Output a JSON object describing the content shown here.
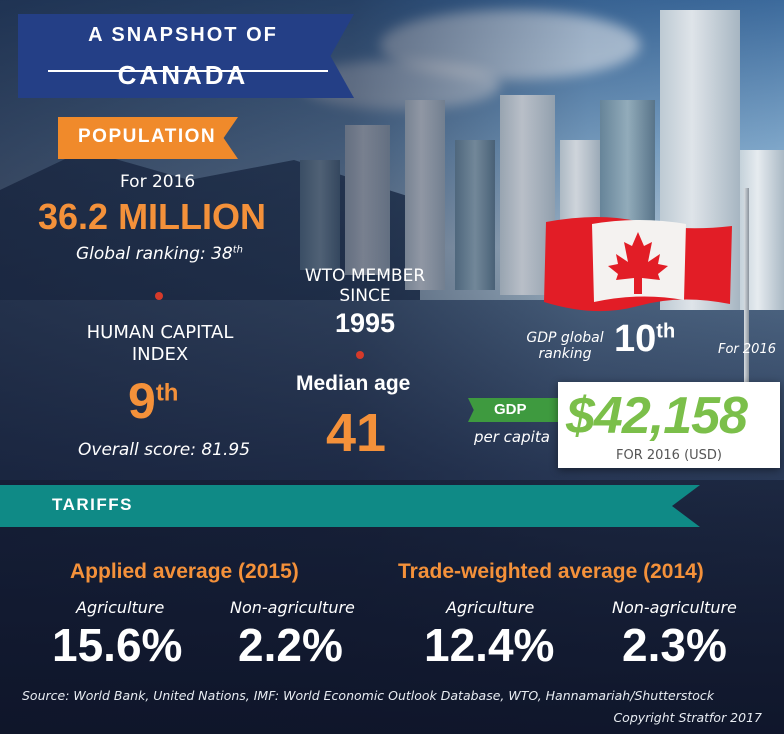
{
  "title": {
    "line1": "A SNAPSHOT OF",
    "line2": "CANADA"
  },
  "population": {
    "label": "POPULATION",
    "year_label": "For 2016",
    "value": "36.2 MILLION",
    "ranking_text": "Global ranking: 38",
    "ranking_suffix": "th"
  },
  "human_capital": {
    "label_line1": "HUMAN CAPITAL",
    "label_line2": "INDEX",
    "rank": "9",
    "rank_suffix": "th",
    "score": "Overall score: 81.95"
  },
  "wto": {
    "label_line1": "WTO MEMBER",
    "label_line2": "SINCE",
    "year": "1995"
  },
  "median_age": {
    "label": "Median age",
    "value": "41"
  },
  "gdp_ranking": {
    "label_line1": "GDP global",
    "label_line2": "ranking",
    "rank": "10",
    "rank_suffix": "th",
    "year": "For 2016"
  },
  "gdp": {
    "tag": "GDP",
    "per_capita": "per capita",
    "value": "$42,158",
    "sub": "FOR 2016 (USD)"
  },
  "tariffs": {
    "label": "TARIFFS",
    "applied": {
      "heading": "Applied average (2015)",
      "agri_label": "Agriculture",
      "agri_value": "15.6%",
      "nonagri_label": "Non-agriculture",
      "nonagri_value": "2.2%"
    },
    "trade_weighted": {
      "heading": "Trade-weighted average (2014)",
      "agri_label": "Agriculture",
      "agri_value": "12.4%",
      "nonagri_label": "Non-agriculture",
      "nonagri_value": "2.3%"
    }
  },
  "source": "Source: World Bank, United Nations, IMF: World Economic Outlook Database, WTO, Hannamariah/Shutterstock",
  "copyright": "Copyright Stratfor 2017",
  "colors": {
    "navy": "#243f86",
    "orange": "#f08a2b",
    "teal": "#0f8a86",
    "green": "#7bbf4a",
    "red": "#d53a2a"
  }
}
